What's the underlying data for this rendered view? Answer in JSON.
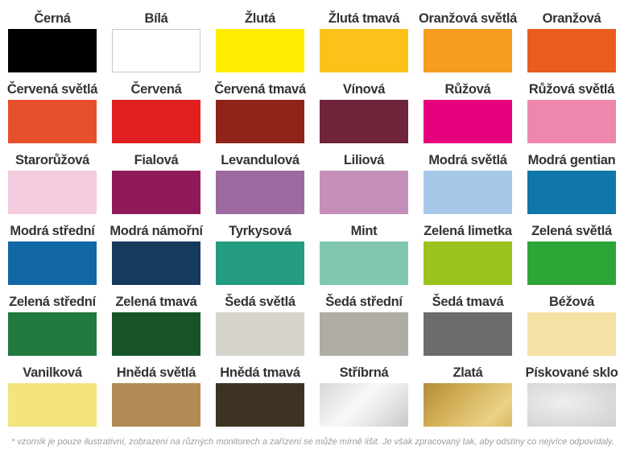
{
  "page": {
    "background": "#ffffff",
    "label_text_color": "#333331",
    "footnote_text_color": "#9c9c9c"
  },
  "footnote": "* vzorník je pouze ilustrativní, zobrazení na různých monitorech a zařízení se může mírně lišit. Je však zpracovaný tak, aby odstíny co nejvíce odpovídaly.",
  "swatches": [
    {
      "label": "Černá",
      "colors": [
        "#000000"
      ]
    },
    {
      "label": "Bílá",
      "colors": [
        "#ffffff"
      ],
      "border": "#c9c9c9"
    },
    {
      "label": "Žlutá",
      "colors": [
        "#ffec00"
      ]
    },
    {
      "label": "Žlutá tmavá",
      "colors": [
        "#fbc21b"
      ]
    },
    {
      "label": "Oranžová světlá",
      "colors": [
        "#f49d1f"
      ]
    },
    {
      "label": "Oranžová",
      "colors": [
        "#e85c1e"
      ]
    },
    {
      "label": "Červená světlá",
      "colors": [
        "#e84f2d"
      ]
    },
    {
      "label": "Červená",
      "colors": [
        "#e02020"
      ]
    },
    {
      "label": "Červená tmavá",
      "colors": [
        "#8f2418"
      ]
    },
    {
      "label": "Vínová",
      "colors": [
        "#6f2439"
      ]
    },
    {
      "label": "Růžová",
      "colors": [
        "#e6007e"
      ]
    },
    {
      "label": "Růžová světlá",
      "colors": [
        "#ed87ad"
      ]
    },
    {
      "label": "Starorůžová",
      "colors": [
        "#f4cbdf"
      ]
    },
    {
      "label": "Fialová",
      "colors": [
        "#901a59"
      ]
    },
    {
      "label": "Levandulová",
      "colors": [
        "#9c6aa1"
      ]
    },
    {
      "label": "Liliová",
      "colors": [
        "#c48fb9"
      ]
    },
    {
      "label": "Modrá světlá",
      "colors": [
        "#a7c9e9"
      ]
    },
    {
      "label": "Modrá gentian",
      "colors": [
        "#1176a9"
      ]
    },
    {
      "label": "Modrá střední",
      "colors": [
        "#1168a4"
      ]
    },
    {
      "label": "Modrá námořní",
      "colors": [
        "#16395e"
      ]
    },
    {
      "label": "Tyrkysová",
      "colors": [
        "#239c82"
      ]
    },
    {
      "label": "Mint",
      "colors": [
        "#81c6b1"
      ]
    },
    {
      "label": "Zelená limetka",
      "colors": [
        "#9ac31d"
      ]
    },
    {
      "label": "Zelená světlá",
      "colors": [
        "#2da637"
      ]
    },
    {
      "label": "Zelená střední",
      "colors": [
        "#20793d"
      ]
    },
    {
      "label": "Zelená tmavá",
      "colors": [
        "#165428"
      ]
    },
    {
      "label": "Šedá světlá",
      "colors": [
        "#d7d4cd"
      ]
    },
    {
      "label": "Šedá střední",
      "colors": [
        "#aeaca4"
      ]
    },
    {
      "label": "Šedá tmavá",
      "colors": [
        "#6c6c6c"
      ]
    },
    {
      "label": "Béžová",
      "colors": [
        "#f6e1a4"
      ]
    },
    {
      "label": "Vanilková",
      "colors": [
        "#f3e47d"
      ]
    },
    {
      "label": "Hnědá světlá",
      "colors": [
        "#b18b53"
      ]
    },
    {
      "label": "Hnědá tmavá",
      "colors": [
        "#3e3323"
      ]
    },
    {
      "label": "Stříbrná",
      "kind": "linear",
      "colors": [
        "#d6d7d9 0%",
        "#f8f9fa 45%",
        "#e8e9ea 65%",
        "#c6c8cb 100%"
      ]
    },
    {
      "label": "Zlatá",
      "kind": "linear",
      "colors": [
        "#b28c3a 0%",
        "#d4b159 40%",
        "#ead287 78%",
        "#d9ba64 100%"
      ]
    },
    {
      "label": "Pískované sklo",
      "kind": "radial",
      "colors": [
        "#eeefef 0%",
        "#dcdddf 55%",
        "#cfd0d2 100%"
      ]
    }
  ]
}
